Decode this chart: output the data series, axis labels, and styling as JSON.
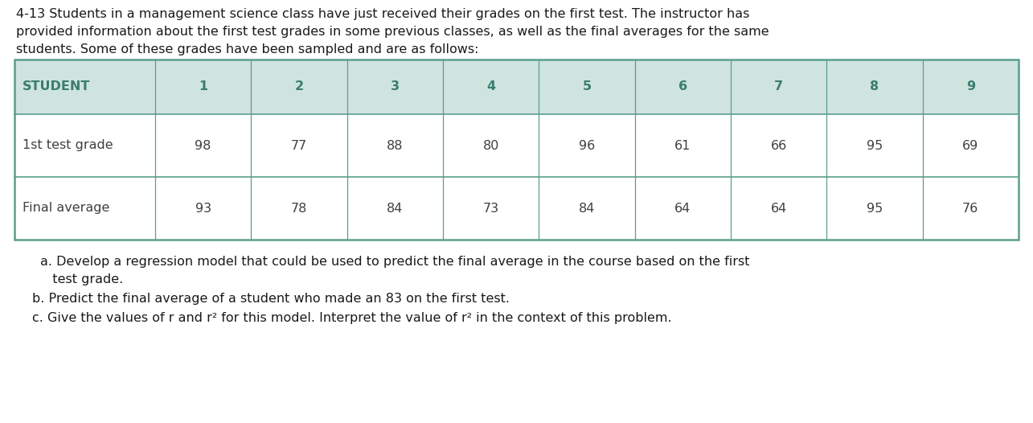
{
  "title_line1": "4-13 Students in a management science class have just received their grades on the first test. The instructor has",
  "title_line2": "provided information about the first test grades in some previous classes, as well as the final averages for the same",
  "title_line3": "students. Some of these grades have been sampled and are as follows:",
  "header_row": [
    "STUDENT",
    "1",
    "2",
    "3",
    "4",
    "5",
    "6",
    "7",
    "8",
    "9"
  ],
  "data_rows": [
    [
      "1st test grade",
      "98",
      "77",
      "88",
      "80",
      "96",
      "61",
      "66",
      "95",
      "69"
    ],
    [
      "Final average",
      "93",
      "78",
      "84",
      "73",
      "84",
      "64",
      "64",
      "95",
      "76"
    ]
  ],
  "header_bg": "#cfe3df",
  "header_text_color": "#3a7d6e",
  "table_border_color": "#5a9e8e",
  "cell_bg": "#ffffff",
  "data_text_color": "#404040",
  "note_a1": "a. Develop a regression model that could be used to predict the final average in the course based on the first",
  "note_a2": "   test grade.",
  "note_b": "b. Predict the final average of a student who made an 83 on the first test.",
  "note_c": "c. Give the values of r and r² for this model. Interpret the value of r² in the context of this problem.",
  "fig_width": 12.85,
  "fig_height": 5.26,
  "bg_color": "#ffffff",
  "title_fontsize": 11.5,
  "header_fontsize": 11.5,
  "data_fontsize": 11.5,
  "notes_fontsize": 11.5
}
